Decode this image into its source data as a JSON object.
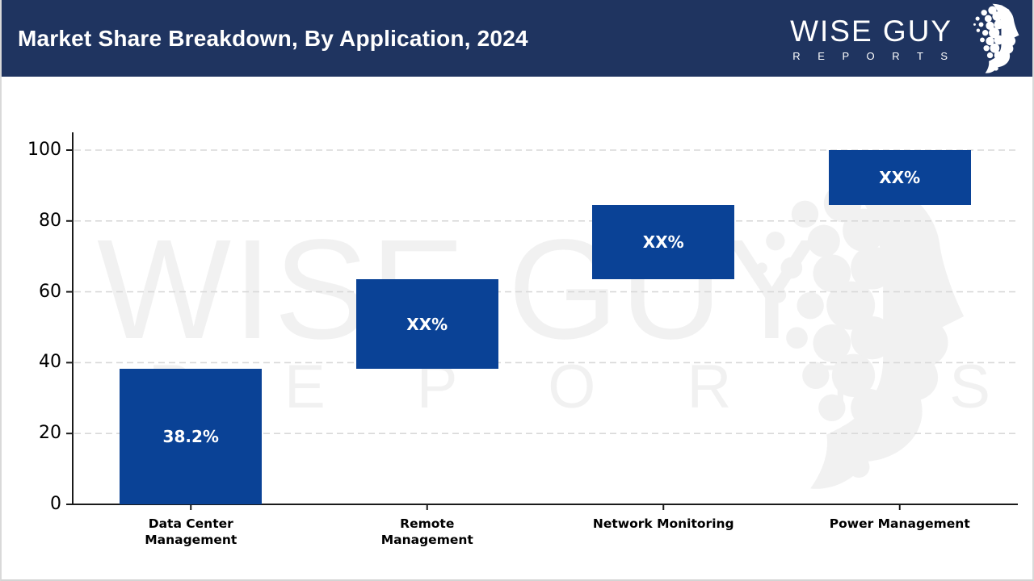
{
  "header": {
    "title": "Market Share Breakdown, By Application, 2024",
    "logo": {
      "line1": "WISE GUY",
      "line2": "R E P O R T S",
      "head_icon": "dotted-face-profile"
    }
  },
  "watermark": {
    "line1": "WISE GUY",
    "line2": "R E P O R T S",
    "head_icon": "dotted-face-profile"
  },
  "colors": {
    "header_bg": "#1f3460",
    "bar_fill": "#0a4296",
    "bar_label_text": "#ffffff",
    "axis": "#1a1a1a",
    "gridline": "#d9d9d9",
    "watermark": "#f1f1f1",
    "title_text": "#ffffff"
  },
  "chart_data": {
    "type": "bar",
    "subtype": "waterfall",
    "title": "Market Share Breakdown, By Application, 2024",
    "xlabel": "",
    "ylabel": "",
    "ylim": [
      0,
      100
    ],
    "yticks": [
      0,
      20,
      40,
      60,
      80,
      100
    ],
    "grid": "horizontal-dashed",
    "legend": "none",
    "categories": [
      "Data Center Management",
      "Remote Management",
      "Network Monitoring",
      "Power Management"
    ],
    "segments": [
      {
        "category": "Data Center Management",
        "start": 0,
        "end": 38.2,
        "label": "38.2%"
      },
      {
        "category": "Remote Management",
        "start": 38.2,
        "end": 63.5,
        "label": "XX%"
      },
      {
        "category": "Network Monitoring",
        "start": 63.5,
        "end": 84.6,
        "label": "XX%"
      },
      {
        "category": "Power Management",
        "start": 84.6,
        "end": 100,
        "label": "XX%"
      }
    ]
  }
}
